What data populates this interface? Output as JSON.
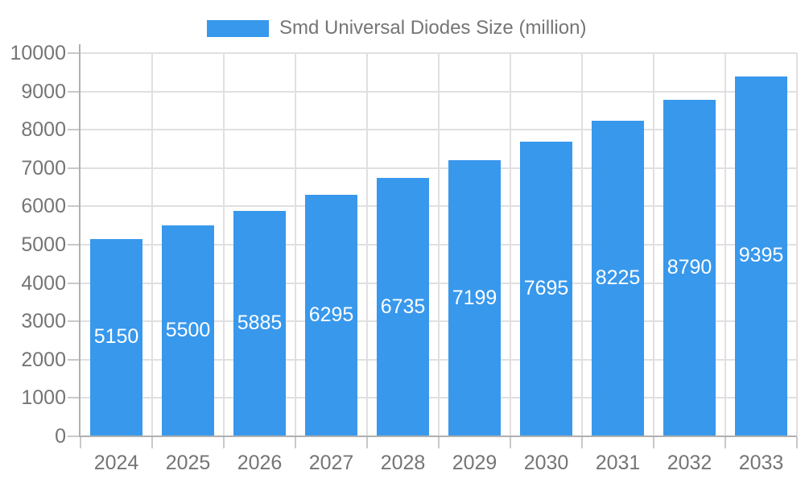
{
  "chart_data": {
    "type": "bar",
    "title": "",
    "categories": [
      "2024",
      "2025",
      "2026",
      "2027",
      "2028",
      "2029",
      "2030",
      "2031",
      "2032",
      "2033"
    ],
    "series": [
      {
        "name": "Smd Universal Diodes Size (million)",
        "values": [
          5150,
          5500,
          5885,
          6295,
          6735,
          7199,
          7695,
          8225,
          8790,
          9395
        ]
      }
    ],
    "xlabel": "",
    "ylabel": "",
    "ylim": [
      0,
      10000
    ],
    "y_ticks": [
      0,
      1000,
      2000,
      3000,
      4000,
      5000,
      6000,
      7000,
      8000,
      9000,
      10000
    ],
    "grid": "horizontal-and-vertical",
    "legend_position": "top-center",
    "value_labels": "inside-center-white",
    "colors": {
      "bar": "#3898ec",
      "value_label": "#ffffff",
      "axis_text": "#757575",
      "grid_line": "#e0e0e2",
      "tick_line": "#c9c9c9",
      "axis_line": "#b0b0b0",
      "background": "#ffffff"
    }
  }
}
